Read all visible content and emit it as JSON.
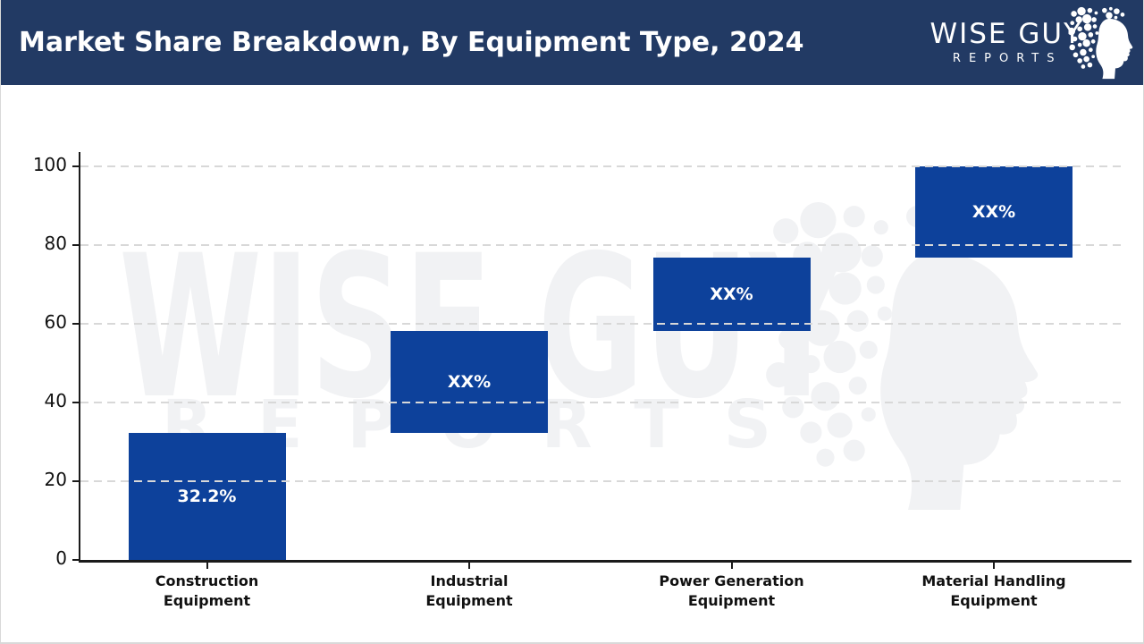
{
  "header": {
    "title": "Market Share Breakdown, By Equipment Type, 2024",
    "logo": {
      "wordmark": "WISE GUY",
      "sub": "REPORTS"
    }
  },
  "watermark": {
    "wordmark": "WISE GUY",
    "sub": "REPORTS"
  },
  "chart_data": {
    "type": "bar",
    "subtype": "waterfall",
    "title": "Market Share Breakdown, By Equipment Type, 2024",
    "categories": [
      "Construction Equipment",
      "Industrial Equipment",
      "Power Generation Equipment",
      "Material Handling Equipment"
    ],
    "bars": [
      {
        "category": "Construction Equipment",
        "start": 0,
        "end": 32.2,
        "label": "32.2%"
      },
      {
        "category": "Industrial Equipment",
        "start": 32.2,
        "end": 58.2,
        "label": "XX%"
      },
      {
        "category": "Power Generation Equipment",
        "start": 58.2,
        "end": 76.8,
        "label": "XX%"
      },
      {
        "category": "Material Handling Equipment",
        "start": 76.8,
        "end": 100,
        "label": "XX%"
      }
    ],
    "xlabel": "",
    "ylabel": "",
    "ylim": [
      0,
      103
    ],
    "yticks": [
      0,
      20,
      40,
      60,
      80,
      100
    ],
    "grid": "horizontal-dashed",
    "legend": "none",
    "colors": {
      "bar": "#0d419b",
      "bar_label": "#ffffff",
      "grid": "#d8d8d8",
      "axis": "#1a1a1a",
      "header_bg": "#223a64",
      "watermark": "#f1f2f4"
    }
  }
}
